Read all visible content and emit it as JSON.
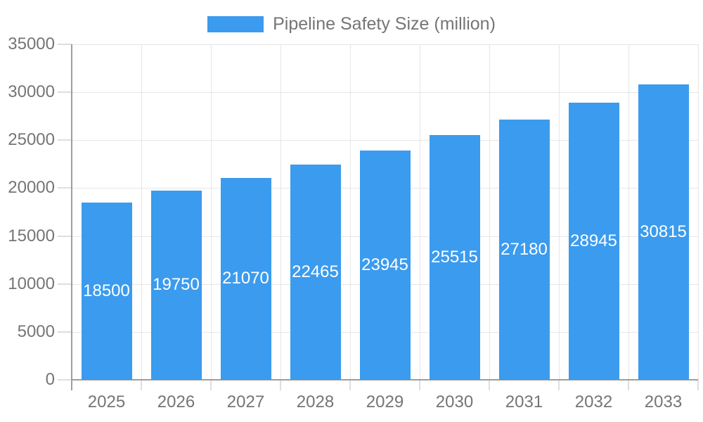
{
  "chart_data": {
    "type": "bar",
    "title": "Pipeline Safety Size (million)",
    "categories": [
      "2025",
      "2026",
      "2027",
      "2028",
      "2029",
      "2030",
      "2031",
      "2032",
      "2033"
    ],
    "values": [
      18500,
      19750,
      21070,
      22465,
      23945,
      25515,
      27180,
      28945,
      30815
    ],
    "series": [
      {
        "name": "Pipeline Safety Size (million)",
        "values": [
          18500,
          19750,
          21070,
          22465,
          23945,
          25515,
          27180,
          28945,
          30815
        ]
      }
    ],
    "xlabel": "",
    "ylabel": "",
    "ylim": [
      0,
      35000
    ],
    "ytick_step": 5000,
    "ytick_labels": [
      "0",
      "5000",
      "10000",
      "15000",
      "20000",
      "25000",
      "30000",
      "35000"
    ],
    "legend_position": "top",
    "grid": true,
    "bar_label_position": "inside-middle",
    "colors": {
      "bar": "#3B9BEE",
      "bar_label": "#ffffff",
      "axis": "#9e9e9e",
      "gridline": "#e6e6e6",
      "tick": "#dedede",
      "text": "#757575"
    }
  }
}
